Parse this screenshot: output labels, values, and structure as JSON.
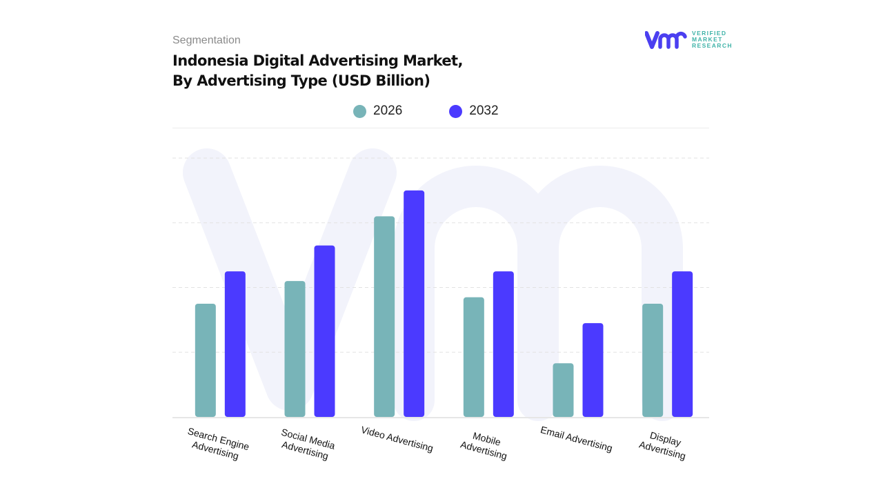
{
  "header": {
    "segment_label": "Segmentation",
    "title_line1": "Indonesia Digital Advertising Market,",
    "title_line2": "By Advertising Type (USD Billion)"
  },
  "logo": {
    "line1": "VERIFIED",
    "line2": "MARKET",
    "line3": "RESEARCH",
    "mark_color": "#4b3ff0",
    "text_color": "#3fb3a8"
  },
  "chart_data": {
    "type": "bar",
    "title": "Indonesia Digital Advertising Market, By Advertising Type (USD Billion)",
    "categories": [
      "Search Engine\nAdvertising",
      "Social Media\nAdvertising",
      "Video Advertising",
      "Mobile\nAdvertising",
      "Email Advertising",
      "Display Advertising"
    ],
    "series": [
      {
        "name": "2026",
        "color": "#78b4b8",
        "values": [
          1.75,
          2.1,
          3.1,
          1.85,
          0.83,
          1.75
        ]
      },
      {
        "name": "2032",
        "color": "#4b3aff",
        "values": [
          2.25,
          2.65,
          3.5,
          2.25,
          1.45,
          2.25
        ]
      }
    ],
    "ylim": [
      0,
      4
    ],
    "y_tick_labels_shown": false,
    "grid": "horizontal dashed",
    "legend": "top-center",
    "xlabel": "",
    "ylabel": ""
  }
}
